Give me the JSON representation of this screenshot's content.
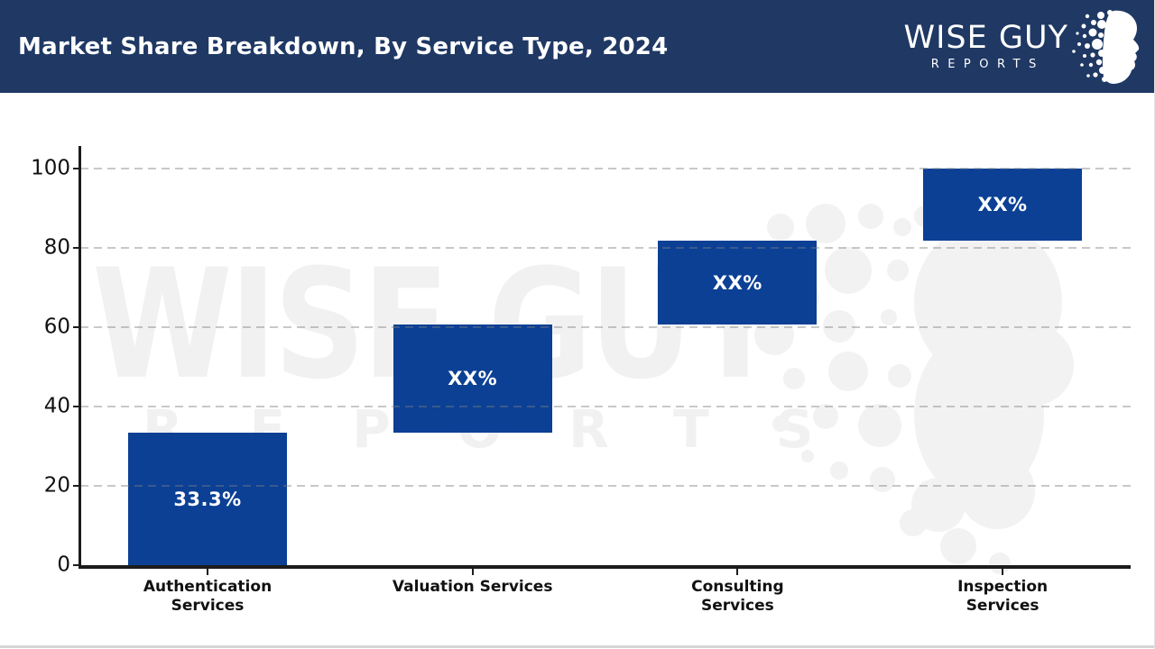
{
  "header": {
    "title": "Market Share Breakdown, By Service Type, 2024",
    "bg_color": "#1f3864",
    "logo": {
      "wordmark": "WISE GUY",
      "subtext": "REPORTS"
    }
  },
  "watermark": {
    "wordmark": "WISE GUY",
    "subtext": "REPORTS"
  },
  "chart_data": {
    "type": "bar",
    "subtype": "stacked-waterfall-percent",
    "title": "Market Share Breakdown, By Service Type, 2024",
    "categories": [
      "Authentication Services",
      "Valuation Services",
      "Consulting Services",
      "Inspection Services"
    ],
    "category_display": [
      "Authentication\nServices",
      "Valuation Services",
      "Consulting\nServices",
      "Inspection\nServices"
    ],
    "segments": [
      {
        "category": "Authentication Services",
        "from": 0,
        "to": 33.3,
        "label": "33.3%"
      },
      {
        "category": "Valuation Services",
        "from": 33.3,
        "to": 60.6,
        "label": "XX%"
      },
      {
        "category": "Consulting Services",
        "from": 60.6,
        "to": 81.8,
        "label": "XX%"
      },
      {
        "category": "Inspection Services",
        "from": 81.8,
        "to": 100,
        "label": "XX%"
      }
    ],
    "xlabel": "",
    "ylabel": "",
    "ylim": [
      0,
      100
    ],
    "yticks": [
      0,
      20,
      40,
      60,
      80,
      100
    ],
    "grid": "horizontal-dashed",
    "legend": "none",
    "bar_color": "#0b4095",
    "value_label_color": "#ffffff",
    "axis_color": "#1c1c1c",
    "tick_label_color": "#111111"
  }
}
